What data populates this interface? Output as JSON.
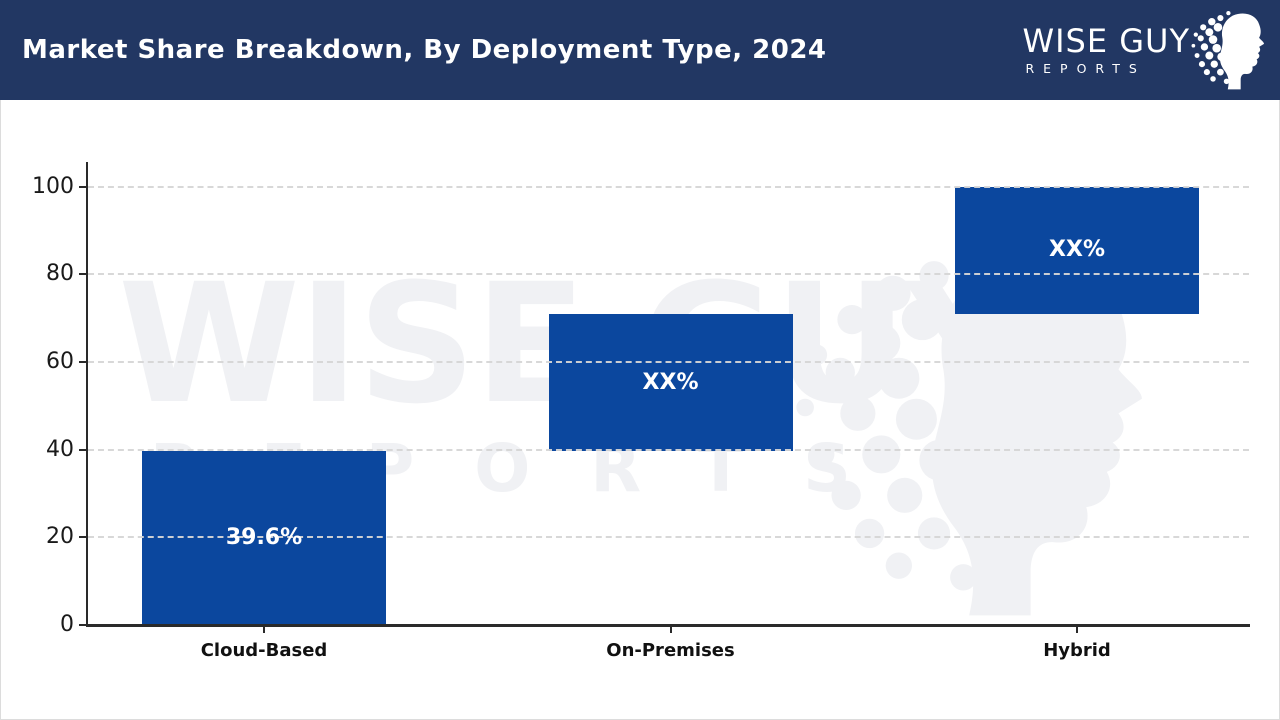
{
  "header": {
    "title": "Market Share Breakdown, By Deployment Type, 2024",
    "logo": {
      "line1": "WISE GUY",
      "line2": "REPORTS"
    }
  },
  "watermark": {
    "line1": "WISE GUY",
    "line2": "REPORTS"
  },
  "chart_data": {
    "type": "bar",
    "subtype": "waterfall",
    "title": "Market Share Breakdown, By Deployment Type, 2024",
    "categories": [
      "Cloud-Based",
      "On-Premises",
      "Hybrid"
    ],
    "segments": [
      {
        "category": "Cloud-Based",
        "label": "39.6%",
        "start": 0,
        "end": 39.6
      },
      {
        "category": "On-Premises",
        "label": "XX%",
        "start": 39.6,
        "end": 71
      },
      {
        "category": "Hybrid",
        "label": "XX%",
        "start": 71,
        "end": 100
      }
    ],
    "value_labels_shown": [
      "39.6%",
      "XX%",
      "XX%"
    ],
    "xlabel": "",
    "ylabel": "",
    "ylim": [
      0,
      100
    ],
    "yticks": [
      0,
      20,
      40,
      60,
      80,
      100
    ],
    "grid": "horizontal-dashed",
    "legend": "none",
    "bar_color": "#0b479e"
  },
  "colors": {
    "header_bg": "#223763",
    "bar": "#0b479e",
    "bar_label": "#ffffff",
    "gridline": "#d6d6d6",
    "axis": "#2a2a2a",
    "tick_label": "#1a1a1a",
    "category_label": "#111111",
    "watermark": "#f0f1f4",
    "background": "#ffffff"
  }
}
